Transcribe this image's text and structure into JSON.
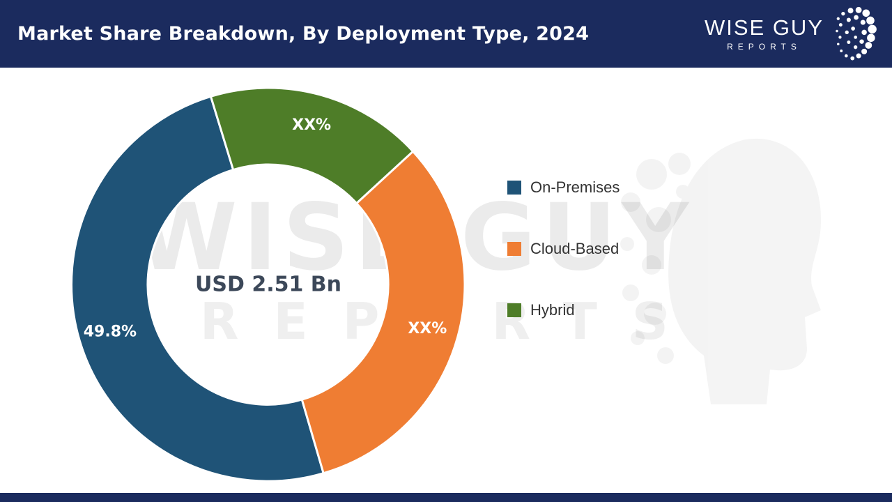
{
  "header": {
    "title": "Market Share Breakdown, By Deployment Type, 2024",
    "background_color": "#1b2b5e",
    "logo": {
      "name_line": "WISE GUY",
      "sub_line": "REPORTS"
    }
  },
  "watermark": {
    "line1": "WISE GUY",
    "line2": "REPORTS"
  },
  "chart_data": {
    "type": "pie",
    "subtype": "donut",
    "title": "Market Share Breakdown, By Deployment Type, 2024",
    "center_label": "USD 2.51 Bn",
    "inner_radius_ratio": 0.61,
    "start_angle_deg": 163.7,
    "draw_order": [
      0,
      2,
      1
    ],
    "legend_position": "right",
    "segments": [
      {
        "name": "On-Premises",
        "label": "49.8%",
        "value": 49.8,
        "color": "#1f5377"
      },
      {
        "name": "Cloud-Based",
        "label": "XX%",
        "value": 32.3,
        "color": "#ef7d33"
      },
      {
        "name": "Hybrid",
        "label": "XX%",
        "value": 17.9,
        "color": "#4e7d28"
      }
    ]
  }
}
